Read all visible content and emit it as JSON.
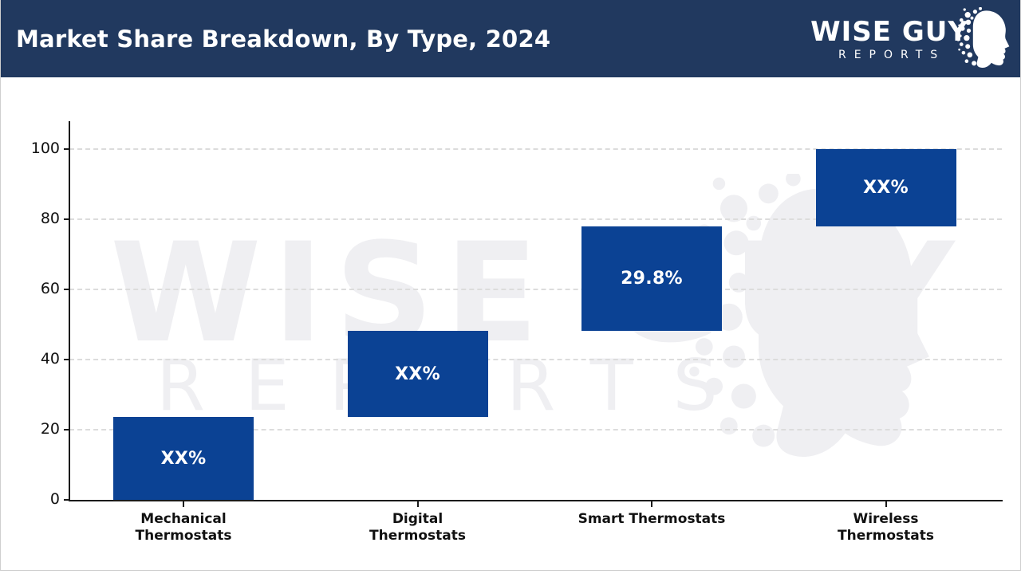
{
  "header": {
    "title": "Market Share Breakdown, By Type, 2024",
    "logo": {
      "line1": "WISE GUY",
      "line2": "REPORTS"
    }
  },
  "watermark": {
    "line1": "WISE GUY",
    "line2": "REPORTS"
  },
  "colors": {
    "header_bg": "#21395f",
    "bar": "#0b4294",
    "grid": "#dcdcdc",
    "axis": "#1a1a1a",
    "bar_label": "#ffffff",
    "text": "#111111",
    "watermark": "#efeff2",
    "frame_border": "#cfcfcf"
  },
  "chart_data": {
    "type": "bar",
    "subtype": "waterfall-stacked-breakdown",
    "title": "Market Share Breakdown, By Type, 2024",
    "categories": [
      {
        "label": "Mechanical Thermostats",
        "lines": [
          "Mechanical",
          "Thermostats"
        ]
      },
      {
        "label": "Digital Thermostats",
        "lines": [
          "Digital",
          "Thermostats"
        ]
      },
      {
        "label": "Smart Thermostats",
        "lines": [
          "Smart Thermostats"
        ]
      },
      {
        "label": "Wireless Thermostats",
        "lines": [
          "Wireless",
          "Thermostats"
        ]
      }
    ],
    "segments": [
      {
        "category": "Mechanical Thermostats",
        "start": 0,
        "end": 23.6,
        "value_label": "XX%"
      },
      {
        "category": "Digital Thermostats",
        "start": 23.6,
        "end": 48.2,
        "value_label": "XX%"
      },
      {
        "category": "Smart Thermostats",
        "start": 48.2,
        "end": 78.0,
        "value_label": "29.8%"
      },
      {
        "category": "Wireless Thermostats",
        "start": 78.0,
        "end": 100.0,
        "value_label": "XX%"
      }
    ],
    "ylim": [
      0,
      100
    ],
    "yticks": [
      0,
      20,
      40,
      60,
      80,
      100
    ],
    "xlabel": "",
    "ylabel": "",
    "grid": "horizontal-dashed",
    "legend": null
  }
}
